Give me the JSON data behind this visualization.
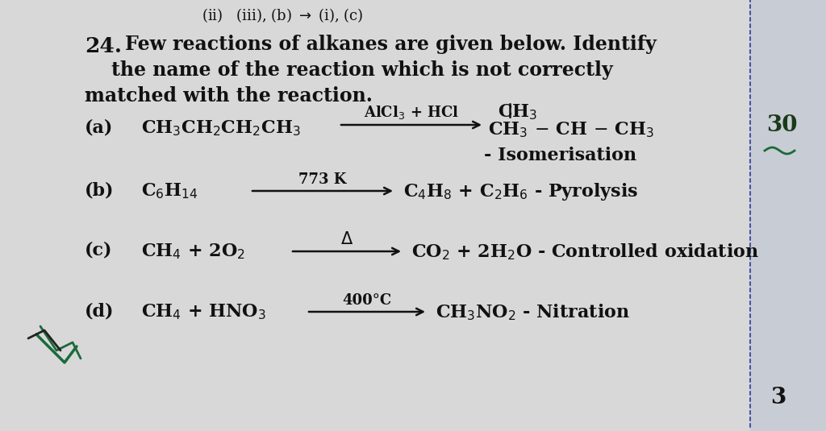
{
  "background_color": "#d8d8d8",
  "right_panel_color": "#c8ccd4",
  "border_color": "#5566aa",
  "text_color": "#111111",
  "number_color": "#1a6a3a",
  "side_number_color": "#1a6a1a",
  "question_number": "24.",
  "question_text_line1": "Few reactions of alkanes are given below. Identify",
  "question_text_line2": "the name of the reaction which is not correctly",
  "question_text_line3": "matched with the reaction.",
  "top_partial_text": "(ii)    (iii), (b)",
  "font_size_q": 17,
  "font_size_opt": 16,
  "font_size_arrow_label": 13
}
